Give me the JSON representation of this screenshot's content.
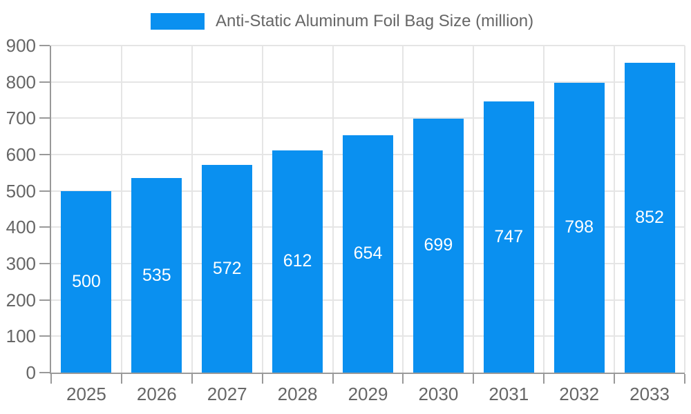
{
  "legend": {
    "label": "Anti-Static Aluminum Foil Bag Size (million)"
  },
  "chart_data": {
    "type": "bar",
    "title": "Anti-Static Aluminum Foil Bag Size (million)",
    "categories": [
      "2025",
      "2026",
      "2027",
      "2028",
      "2029",
      "2030",
      "2031",
      "2032",
      "2033"
    ],
    "values": [
      500,
      535,
      572,
      612,
      654,
      699,
      747,
      798,
      852
    ],
    "xlabel": "",
    "ylabel": "",
    "ylim": [
      0,
      900
    ],
    "ytick_step": 100,
    "ytick_labels": [
      "0",
      "100",
      "200",
      "300",
      "400",
      "500",
      "600",
      "700",
      "800",
      "900"
    ],
    "grid": true,
    "legend_position": "top-center",
    "value_label_position": "inside-middle",
    "colors": {
      "bar": "#0a90f0",
      "value_label": "#ffffff",
      "axis_line": "#999999",
      "gridline": "#e5e5e5",
      "tick_text": "#666666",
      "background": "#ffffff"
    }
  }
}
